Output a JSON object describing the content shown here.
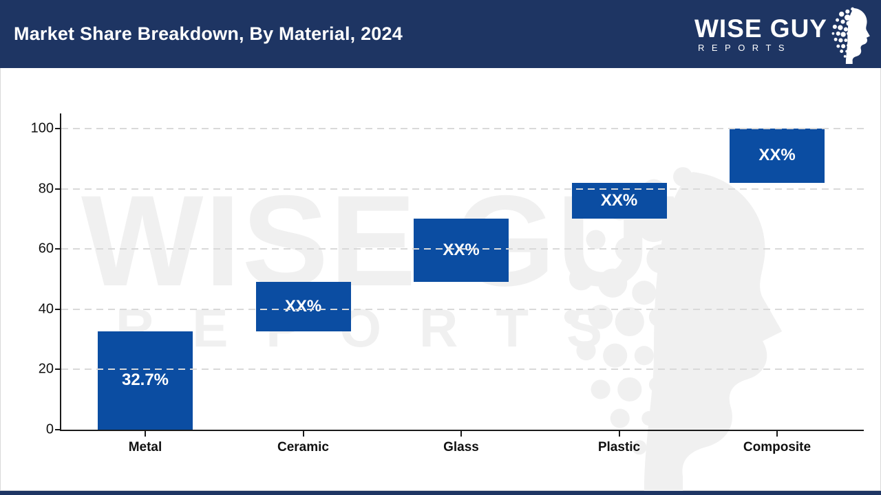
{
  "header": {
    "title": "Market Share Breakdown, By Material, 2024",
    "logo": {
      "line1": "WISE GUY",
      "line2": "REPORTS"
    }
  },
  "watermark": {
    "line1": "WISE GUY",
    "line2": "REPORTS"
  },
  "chart_data": {
    "type": "bar",
    "subtype": "waterfall",
    "title": "Market Share Breakdown, By Material, 2024",
    "categories": [
      "Metal",
      "Ceramic",
      "Glass",
      "Plastic",
      "Composite"
    ],
    "segments": [
      {
        "category": "Metal",
        "start": 0,
        "end": 32.7,
        "label": "32.7%"
      },
      {
        "category": "Ceramic",
        "start": 32.7,
        "end": 49,
        "label": "XX%"
      },
      {
        "category": "Glass",
        "start": 49,
        "end": 70,
        "label": "XX%"
      },
      {
        "category": "Plastic",
        "start": 70,
        "end": 82,
        "label": "XX%"
      },
      {
        "category": "Composite",
        "start": 82,
        "end": 100,
        "label": "XX%"
      }
    ],
    "yticks": [
      0,
      20,
      40,
      60,
      80,
      100
    ],
    "ylim": [
      0,
      100
    ],
    "xlabel": "",
    "ylabel": "",
    "grid": "horizontal-dashed",
    "legend": "none",
    "bar_color": "#0b4da2",
    "bar_label_color": "#ffffff"
  },
  "colors": {
    "header_background": "#1e3563",
    "footer_background": "#1e3563",
    "bar_blue": "#0b4da2",
    "gridline_gray": "#d9d9d9",
    "axis_black": "#1a1a1a",
    "watermark_gray": "#f0f0f0",
    "page_background": "#ffffff"
  }
}
